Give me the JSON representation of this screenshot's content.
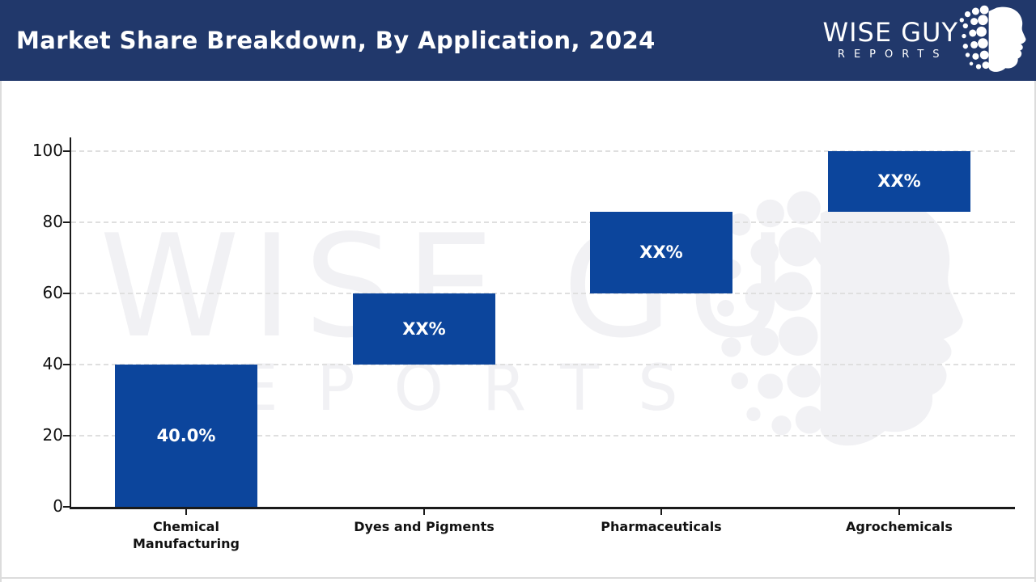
{
  "header": {
    "title": "Market Share Breakdown, By Application, 2024",
    "logo": {
      "wordmark": "WISE GUY",
      "subtext": "REPORTS"
    }
  },
  "watermark": {
    "wordmark": "WISE GUY",
    "subtext": "REPORTS"
  },
  "colors": {
    "header_bg": "#21386B",
    "title_text": "#FFFFFF",
    "bar": "#0C459C",
    "bar_label": "#FFFFFF",
    "axis": "#1A1A1A",
    "grid": "#DFDFDF",
    "tick_label": "#111111",
    "watermark": "#F1F1F4"
  },
  "chart_data": {
    "type": "bar",
    "subtype": "waterfall",
    "title": "Market Share Breakdown, By Application, 2024",
    "categories": [
      "Chemical Manufacturing",
      "Dyes and Pigments",
      "Pharmaceuticals",
      "Agrochemicals"
    ],
    "series": [
      {
        "segments": [
          {
            "category": "Chemical Manufacturing",
            "start": 0,
            "end": 40,
            "label": "40.0%"
          },
          {
            "category": "Dyes and Pigments",
            "start": 40,
            "end": 60,
            "label": "XX%"
          },
          {
            "category": "Pharmaceuticals",
            "start": 60,
            "end": 83,
            "label": "XX%"
          },
          {
            "category": "Agrochemicals",
            "start": 83,
            "end": 100,
            "label": "XX%"
          }
        ]
      }
    ],
    "xlabel": "",
    "ylabel": "",
    "ylim": [
      0,
      100
    ],
    "yticks": [
      0,
      20,
      40,
      60,
      80,
      100
    ],
    "grid": "horizontal-dashed",
    "legend": "none"
  }
}
